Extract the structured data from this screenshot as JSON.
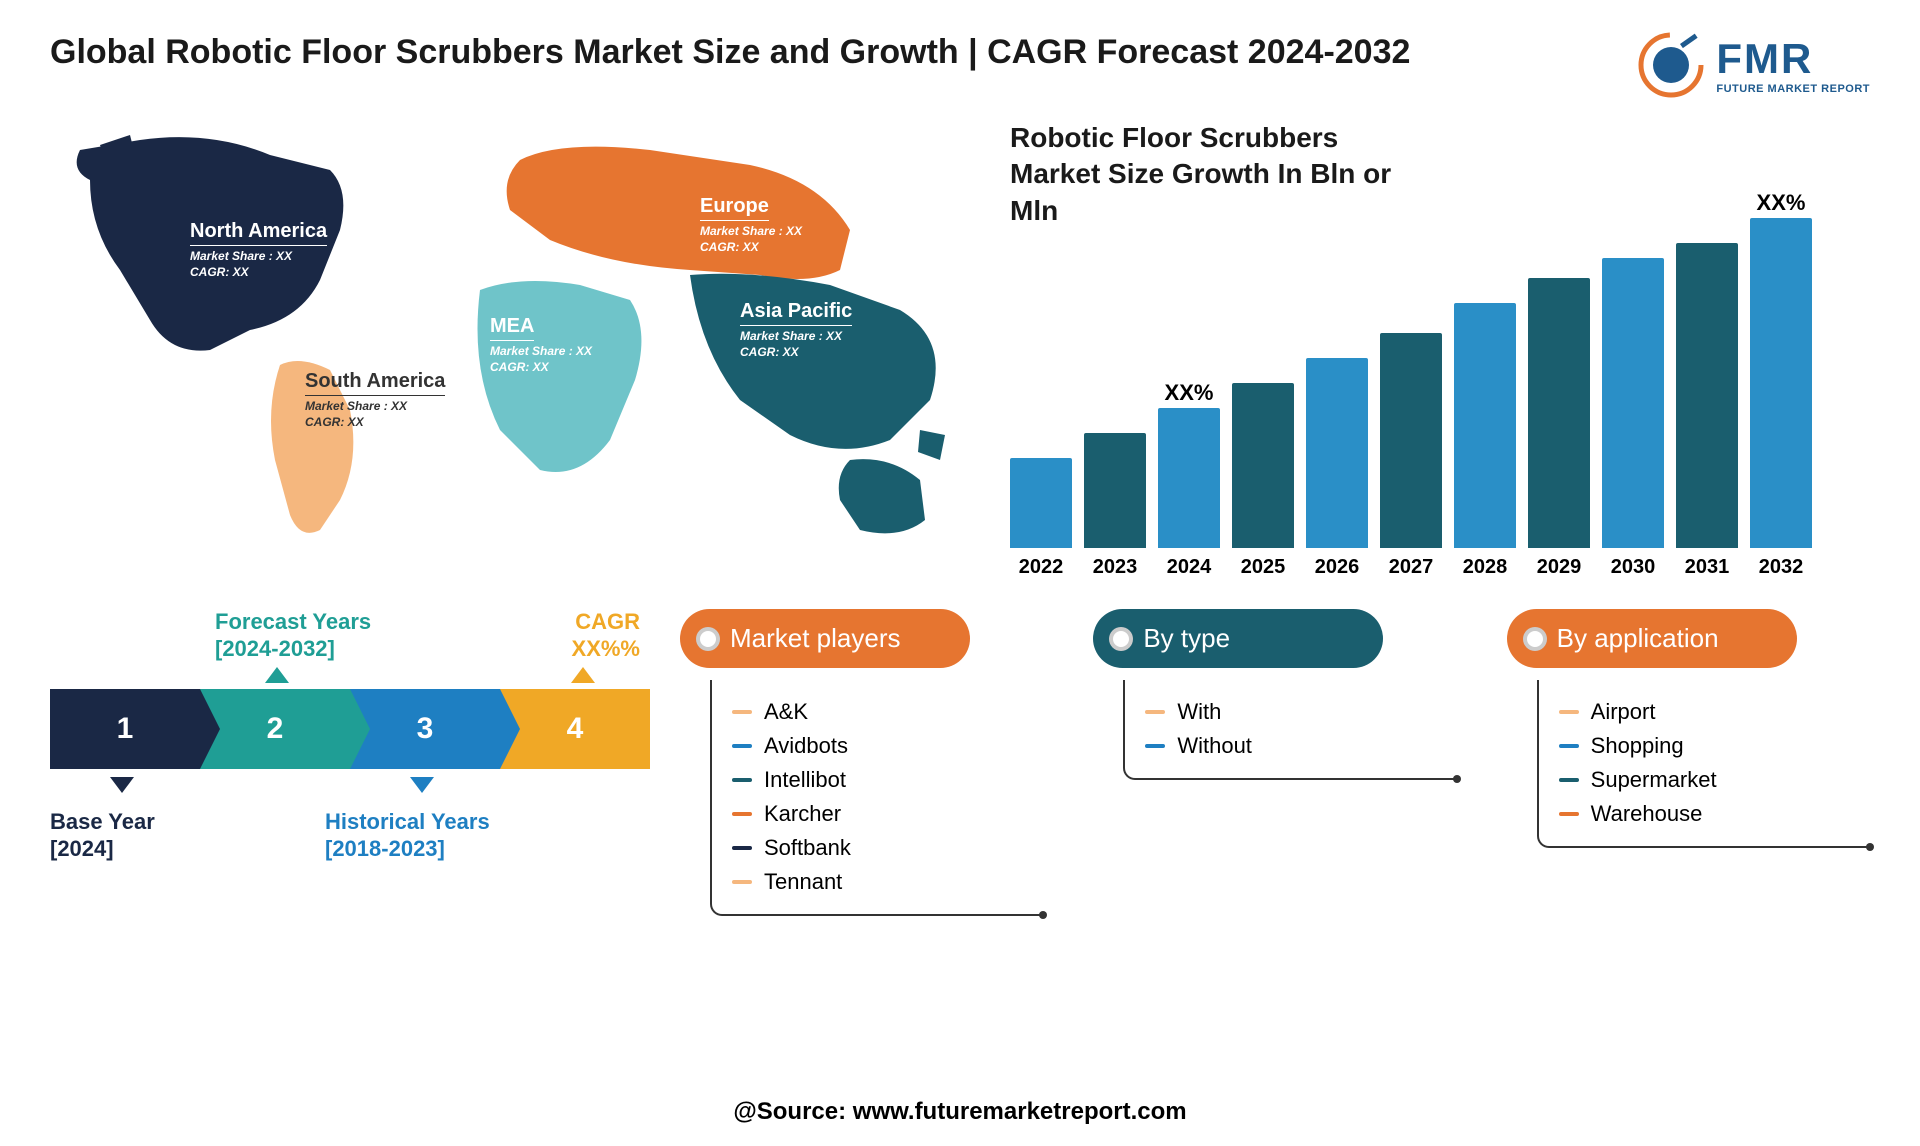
{
  "title": "Global Robotic Floor Scrubbers Market Size and Growth | CAGR Forecast 2024-2032",
  "logo": {
    "brand": "FMR",
    "subtitle": "FUTURE MARKET REPORT"
  },
  "map": {
    "regions": [
      {
        "key": "na",
        "name": "North America",
        "share": "Market Share : XX",
        "cagr": "CAGR: XX",
        "color": "#1a2845"
      },
      {
        "key": "sa",
        "name": "South America",
        "share": "Market Share : XX",
        "cagr": "CAGR: XX",
        "color": "#f5b77e"
      },
      {
        "key": "eu",
        "name": "Europe",
        "share": "Market Share : XX",
        "cagr": "CAGR: XX",
        "color": "#e67530"
      },
      {
        "key": "mea",
        "name": "MEA",
        "share": "Market Share : XX",
        "cagr": "CAGR: XX",
        "color": "#6fc4c9"
      },
      {
        "key": "ap",
        "name": "Asia Pacific",
        "share": "Market Share : XX",
        "cagr": "CAGR: XX",
        "color": "#1a5e6e"
      }
    ]
  },
  "bar_chart": {
    "title": "Robotic Floor Scrubbers Market Size Growth In Bln or Mln",
    "years": [
      "2022",
      "2023",
      "2024",
      "2025",
      "2026",
      "2027",
      "2028",
      "2029",
      "2030",
      "2031",
      "2032"
    ],
    "values": [
      90,
      115,
      140,
      165,
      190,
      215,
      245,
      270,
      290,
      305,
      330
    ],
    "colors": [
      "#2a8fc7",
      "#1a5e6e",
      "#2a8fc7",
      "#1a5e6e",
      "#2a8fc7",
      "#1a5e6e",
      "#2a8fc7",
      "#1a5e6e",
      "#2a8fc7",
      "#1a5e6e",
      "#2a8fc7"
    ],
    "top_labels": {
      "2": "XX%",
      "10": "XX%"
    },
    "label_fontsize": 20,
    "max_height": 330
  },
  "timeline": {
    "steps": [
      {
        "num": "1",
        "color": "#1a2845"
      },
      {
        "num": "2",
        "color": "#1f9e95"
      },
      {
        "num": "3",
        "color": "#1e7fc2"
      },
      {
        "num": "4",
        "color": "#f0a826"
      }
    ],
    "labels": {
      "base": {
        "title": "Base Year",
        "sub": "[2024]",
        "color": "#1a2845"
      },
      "forecast": {
        "title": "Forecast Years",
        "sub": "[2024-2032]",
        "color": "#1f9e95"
      },
      "historical": {
        "title": "Historical Years",
        "sub": "[2018-2023]",
        "color": "#1e7fc2"
      },
      "cagr": {
        "title": "CAGR",
        "sub": "XX%%",
        "color": "#f0a826"
      }
    }
  },
  "pills": [
    {
      "label": "Market players",
      "color": "#e67530",
      "items": [
        {
          "text": "A&K",
          "marker": "#f5b77e"
        },
        {
          "text": "Avidbots",
          "marker": "#1e7fc2"
        },
        {
          "text": "Intellibot",
          "marker": "#1a5e6e"
        },
        {
          "text": "Karcher",
          "marker": "#e67530"
        },
        {
          "text": "Softbank",
          "marker": "#1a2845"
        },
        {
          "text": "Tennant",
          "marker": "#f5b77e"
        }
      ]
    },
    {
      "label": "By type",
      "color": "#1a5e6e",
      "items": [
        {
          "text": "With",
          "marker": "#f5b77e"
        },
        {
          "text": "Without",
          "marker": "#1e7fc2"
        }
      ]
    },
    {
      "label": "By application",
      "color": "#e67530",
      "items": [
        {
          "text": "Airport",
          "marker": "#f5b77e"
        },
        {
          "text": "Shopping",
          "marker": "#1e7fc2"
        },
        {
          "text": "Supermarket",
          "marker": "#1a5e6e"
        },
        {
          "text": "Warehouse",
          "marker": "#e67530"
        }
      ]
    }
  ],
  "source": "@Source: www.futuremarketreport.com"
}
